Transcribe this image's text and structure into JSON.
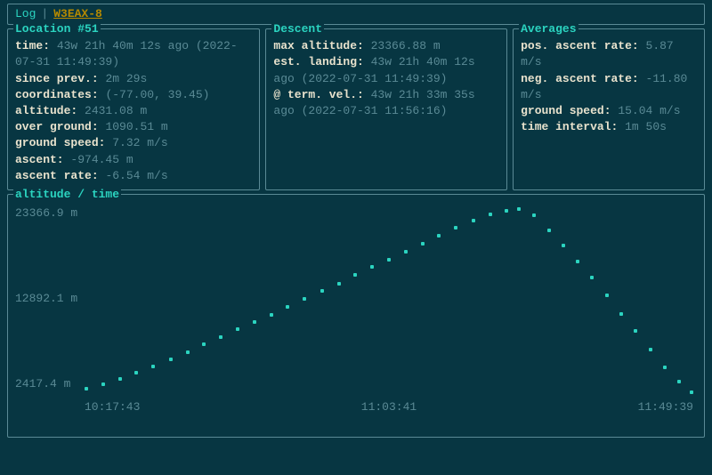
{
  "colors": {
    "bg": "#073642",
    "dim": "#5a8a95",
    "accent": "#2bd4c0",
    "highlight": "#b58900",
    "label": "#e8e2cd"
  },
  "tabs": {
    "log": "Log",
    "separator": "|",
    "active": "W3EAX-8"
  },
  "location": {
    "title": "Location #51",
    "time_k": "time:",
    "time_v": "43w 21h 40m 12s ago (2022-07-31 11:49:39)",
    "since_k": "since prev.:",
    "since_v": "2m 29s",
    "coords_k": "coordinates:",
    "coords_v": "(-77.00, 39.45)",
    "alt_k": "altitude:",
    "alt_v": "2431.08 m",
    "og_k": "over ground:",
    "og_v": "1090.51 m",
    "gs_k": "ground speed:",
    "gs_v": "7.32 m/s",
    "asc_k": "ascent:",
    "asc_v": "-974.45 m",
    "ascr_k": "ascent rate:",
    "ascr_v": "-6.54 m/s"
  },
  "descent": {
    "title": "Descent",
    "maxalt_k": "max altitude:",
    "maxalt_v": "23366.88 m",
    "land_k": "est. landing:",
    "land_v": "43w 21h 40m 12s ago (2022-07-31 11:49:39)",
    "term_k": "@ term. vel.:",
    "term_v": "43w 21h 33m 35s ago (2022-07-31 11:56:16)"
  },
  "averages": {
    "title": "Averages",
    "pos_k": "pos. ascent rate:",
    "pos_v": "5.87 m/s",
    "neg_k": "neg. ascent rate:",
    "neg_v": "-11.80 m/s",
    "gs_k": "ground speed:",
    "gs_v": "15.04 m/s",
    "ti_k": "time interval:",
    "ti_v": "1m 50s"
  },
  "chart": {
    "title": "altitude / time",
    "type": "scatter",
    "yticks": [
      "23366.9 m",
      "12892.1 m",
      "2417.4 m"
    ],
    "xticks": [
      "10:17:43",
      "11:03:41",
      "11:49:39"
    ],
    "ylim": [
      2417.4,
      23366.9
    ],
    "xlim": [
      0,
      1
    ],
    "point_color": "#2bd4c0",
    "background_color": "#073642",
    "points": [
      [
        0.0,
        2800
      ],
      [
        0.028,
        3300
      ],
      [
        0.056,
        3900
      ],
      [
        0.083,
        4600
      ],
      [
        0.111,
        5400
      ],
      [
        0.139,
        6200
      ],
      [
        0.167,
        7000
      ],
      [
        0.194,
        7900
      ],
      [
        0.222,
        8700
      ],
      [
        0.25,
        9600
      ],
      [
        0.278,
        10400
      ],
      [
        0.306,
        11300
      ],
      [
        0.333,
        12200
      ],
      [
        0.361,
        13100
      ],
      [
        0.389,
        14000
      ],
      [
        0.417,
        14800
      ],
      [
        0.444,
        15800
      ],
      [
        0.472,
        16700
      ],
      [
        0.5,
        17600
      ],
      [
        0.528,
        18500
      ],
      [
        0.556,
        19400
      ],
      [
        0.583,
        20300
      ],
      [
        0.611,
        21200
      ],
      [
        0.639,
        22000
      ],
      [
        0.667,
        22700
      ],
      [
        0.694,
        23200
      ],
      [
        0.714,
        23367
      ],
      [
        0.74,
        22600
      ],
      [
        0.764,
        20900
      ],
      [
        0.788,
        19200
      ],
      [
        0.812,
        17400
      ],
      [
        0.836,
        15500
      ],
      [
        0.86,
        13500
      ],
      [
        0.884,
        11400
      ],
      [
        0.908,
        9400
      ],
      [
        0.932,
        7300
      ],
      [
        0.956,
        5300
      ],
      [
        0.98,
        3600
      ],
      [
        1.0,
        2431
      ]
    ]
  }
}
